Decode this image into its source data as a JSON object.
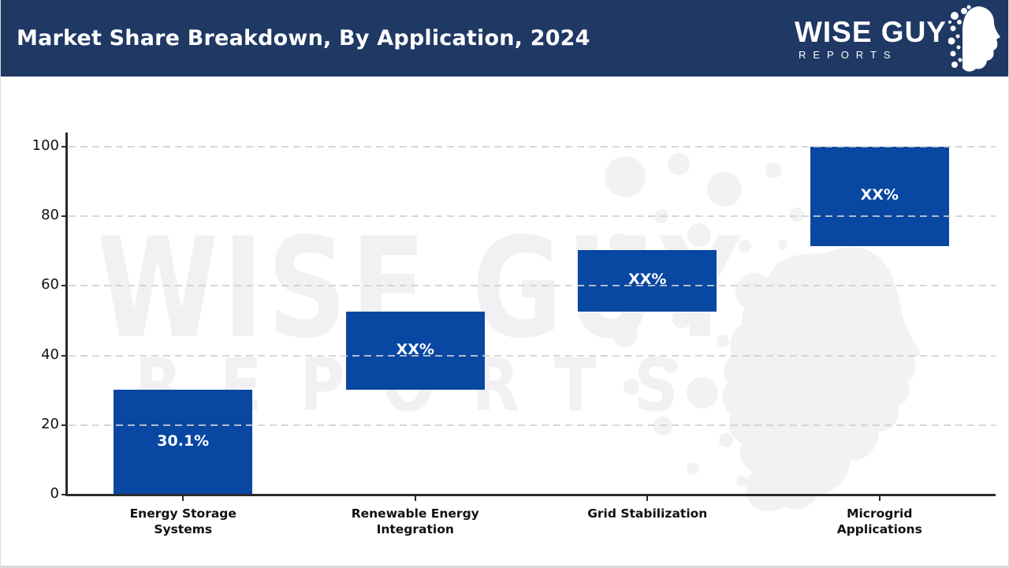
{
  "header": {
    "title": "Market Share Breakdown, By Application, 2024",
    "logo": {
      "name": "WISE GUY",
      "subtitle": "REPORTS"
    }
  },
  "watermark": {
    "line1": "WISE GUY",
    "line2": "REPORTS"
  },
  "chart_data": {
    "type": "bar",
    "subtype": "floating-waterfall",
    "title": "Market Share Breakdown, By Application, 2024",
    "categories": [
      "Energy Storage\nSystems",
      "Renewable Energy\nIntegration",
      "Grid Stabilization",
      "Microgrid\nApplications"
    ],
    "segments": [
      {
        "category": "Energy Storage Systems",
        "start": 0,
        "end": 30.1,
        "label": "30.1%"
      },
      {
        "category": "Renewable Energy Integration",
        "start": 30.1,
        "end": 52.6,
        "label": "XX%"
      },
      {
        "category": "Grid Stabilization",
        "start": 52.6,
        "end": 70.4,
        "label": "XX%"
      },
      {
        "category": "Microgrid Applications",
        "start": 71.5,
        "end": 100,
        "label": "XX%"
      }
    ],
    "xlabel": "",
    "ylabel": "",
    "ylim": [
      0,
      100
    ],
    "yticks": [
      0,
      20,
      40,
      60,
      80,
      100
    ],
    "grid": "dashed-horizontal",
    "legend": "none",
    "colors": {
      "bar": "#0847a2",
      "header_bg": "#1f3864",
      "grid": "#d8d8d8",
      "axis": "#2b2b2b",
      "title_text": "#ffffff",
      "watermark": "#f1f1f3"
    }
  }
}
